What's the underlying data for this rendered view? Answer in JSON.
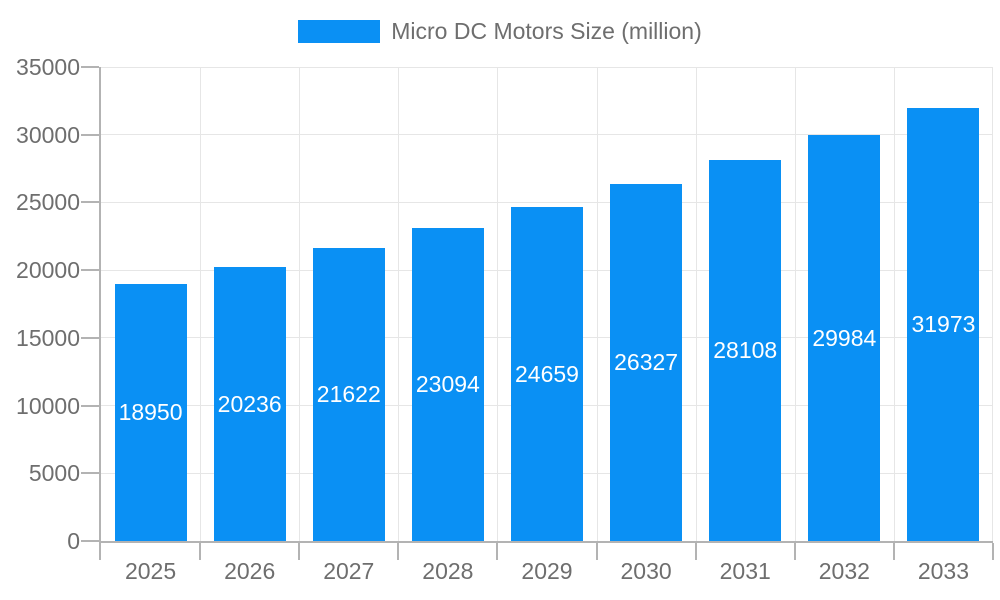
{
  "chart_data": {
    "type": "bar",
    "title": "Micro DC Motors Size (million)",
    "categories": [
      "2025",
      "2026",
      "2027",
      "2028",
      "2029",
      "2030",
      "2031",
      "2032",
      "2033"
    ],
    "series": [
      {
        "name": "Micro DC Motors Size (million)",
        "values": [
          18950,
          20236,
          21622,
          23094,
          24659,
          26327,
          28108,
          29984,
          31973
        ]
      }
    ],
    "ylim": [
      0,
      35000
    ],
    "yticks": [
      0,
      5000,
      10000,
      15000,
      20000,
      25000,
      30000,
      35000
    ],
    "ytick_labels": [
      "0",
      "5000",
      "10000",
      "15000",
      "20000",
      "25000",
      "30000",
      "35000"
    ],
    "grid": "both",
    "legend_position": "top-center",
    "value_labels": {
      "position": "inside-center",
      "color": "#ffffff"
    }
  },
  "legend": {
    "label": "Micro DC Motors Size (million)",
    "swatch_color": "#0a90f4"
  },
  "colors": {
    "background": "#ffffff",
    "bar": "#0a90f4",
    "axis_line": "#b3b3b3",
    "gridline": "#e6e6e6",
    "tick_label": "#6e6e6e",
    "value_label": "#ffffff"
  }
}
